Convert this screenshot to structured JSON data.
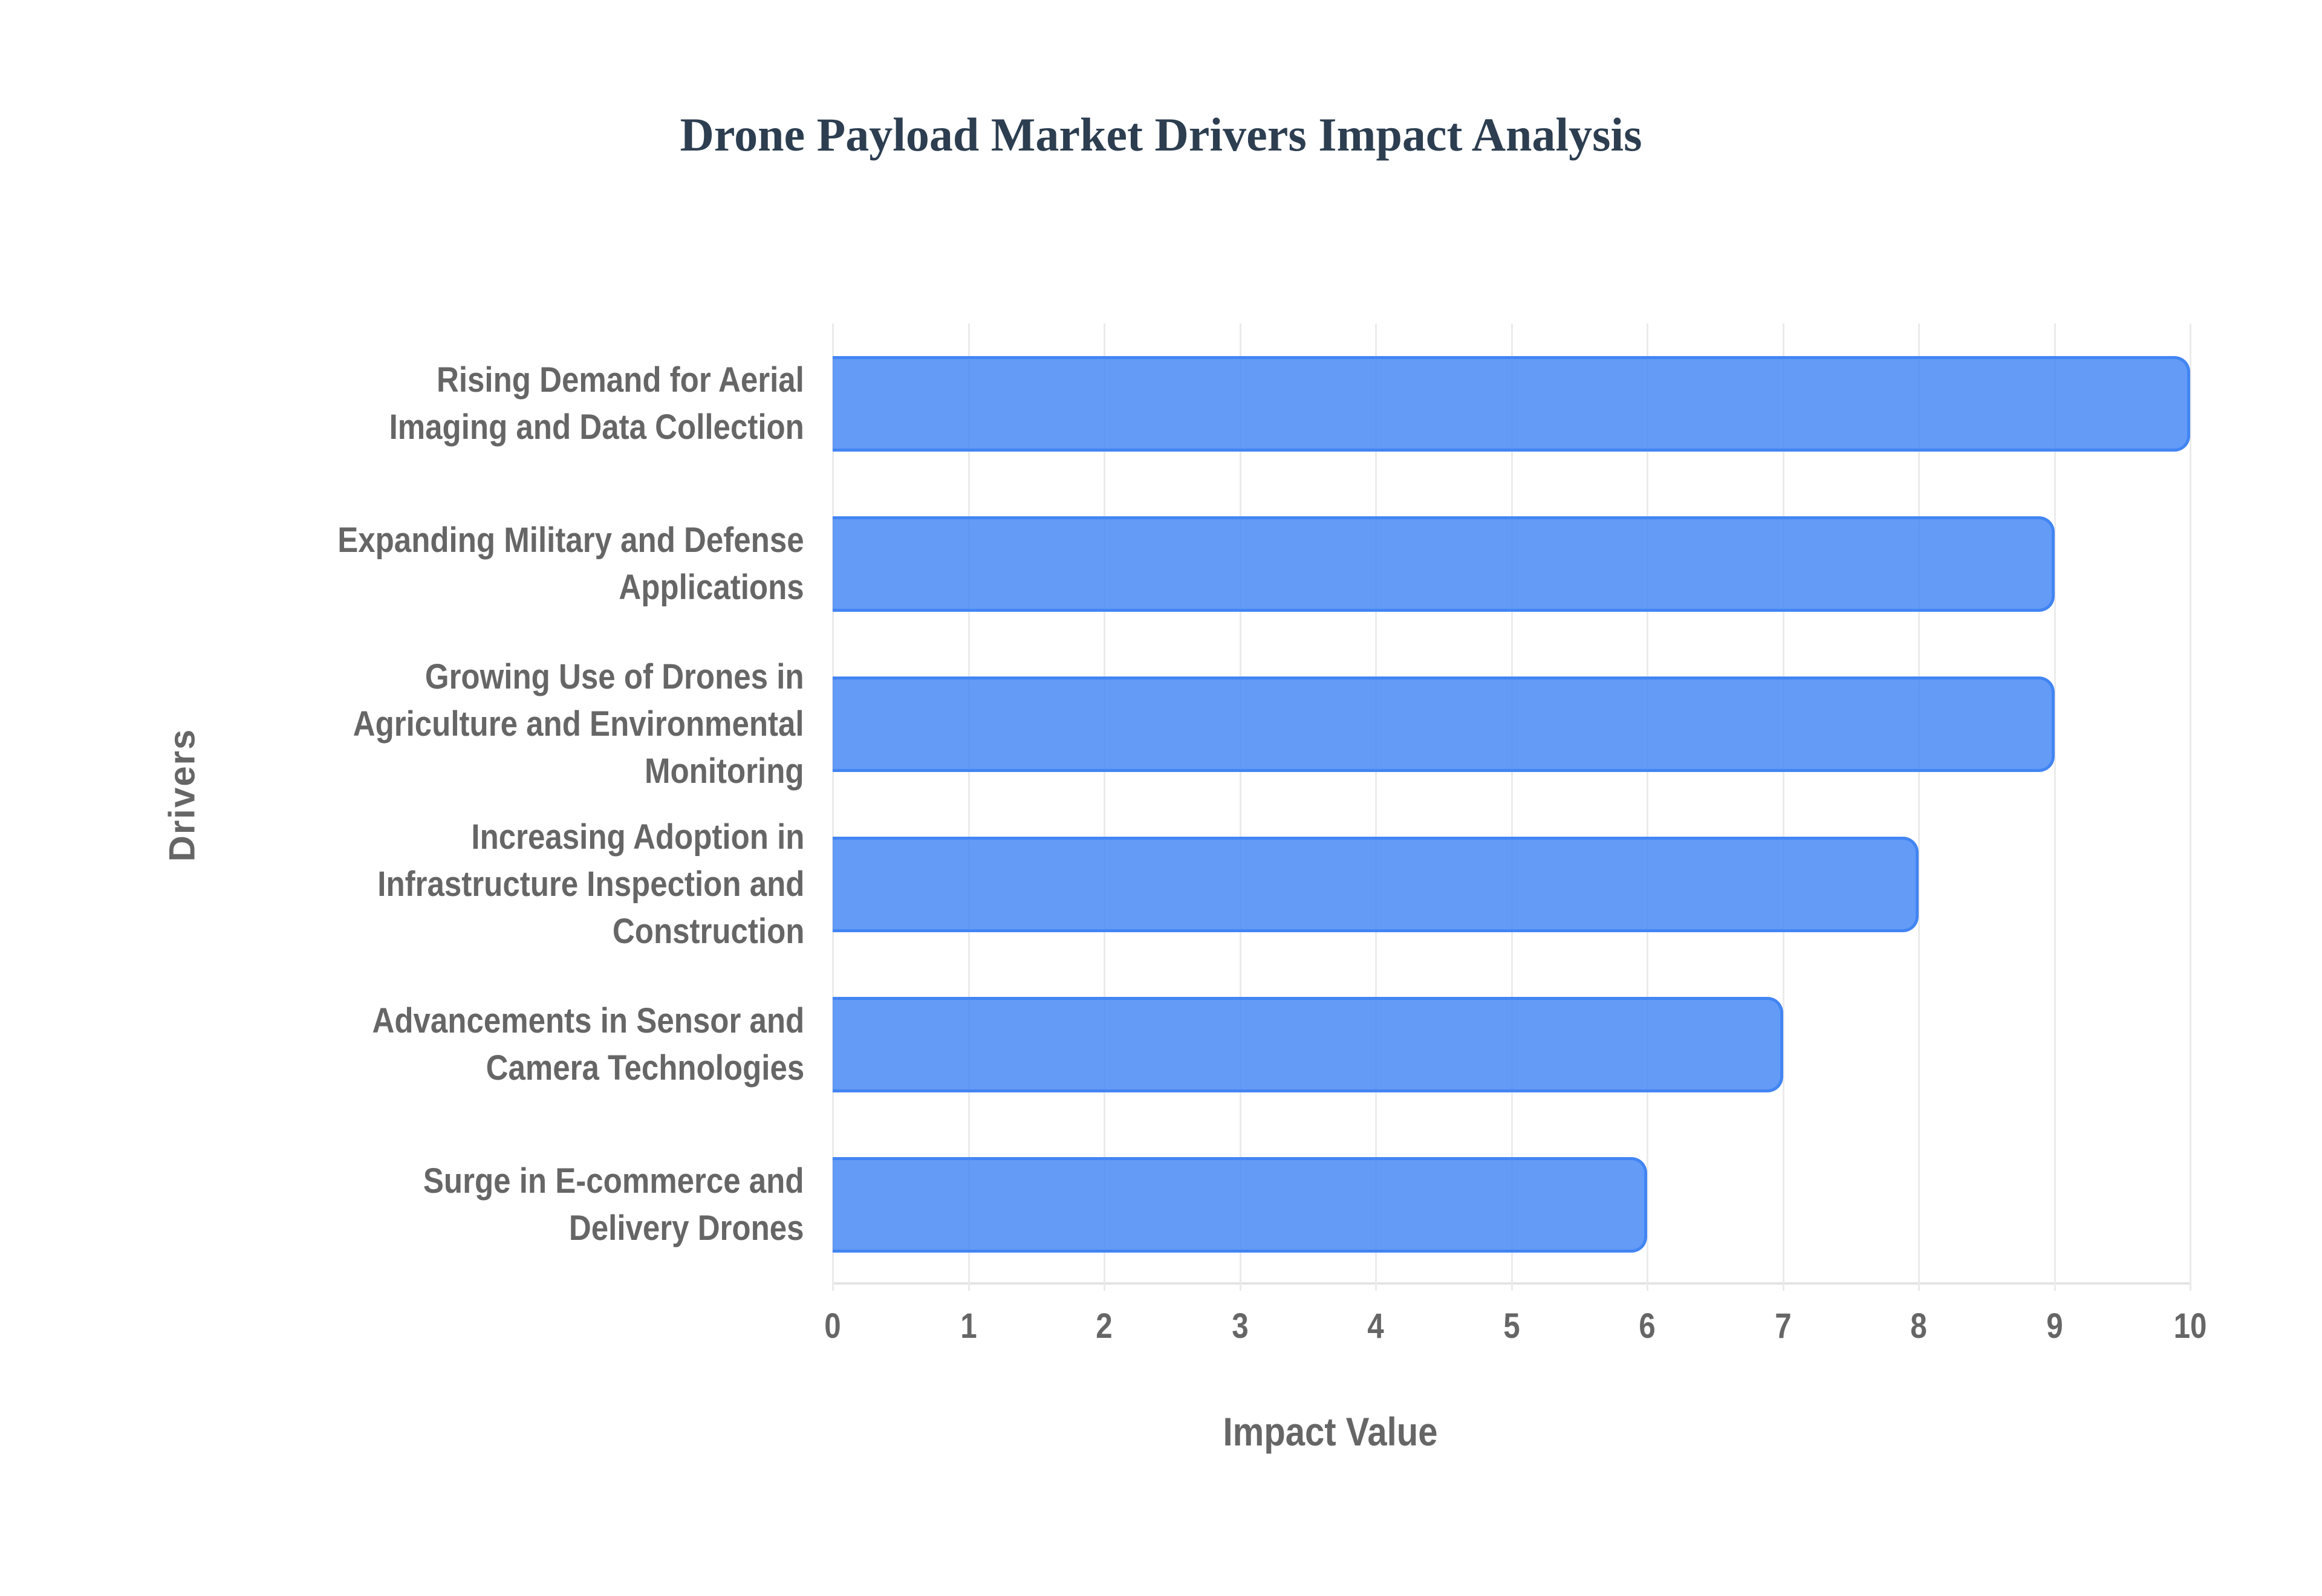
{
  "chart_data": {
    "type": "bar",
    "orientation": "horizontal",
    "title": "Drone Payload Market Drivers Impact Analysis",
    "xlabel": "Impact Value",
    "ylabel": "Drivers",
    "xlim": [
      0,
      10
    ],
    "xticks": [
      "0",
      "1",
      "2",
      "3",
      "4",
      "5",
      "6",
      "7",
      "8",
      "9",
      "10"
    ],
    "grid": true,
    "legend": null,
    "categories": [
      "Rising Demand for Aerial Imaging and Data Collection",
      "Expanding Military and Defense Applications",
      "Growing Use of Drones in Agriculture and Environmental Monitoring",
      "Increasing Adoption in Infrastructure Inspection and Construction",
      "Advancements in Sensor and Camera Technologies",
      "Surge in E-commerce and Delivery Drones"
    ],
    "values": [
      10,
      9,
      9,
      8,
      7,
      6
    ],
    "colors": {
      "bar_fill": "#6299f5",
      "bar_border": "#4285f4",
      "title": "#2c3e50",
      "text": "#666666",
      "grid": "#ebebeb"
    }
  },
  "labels": {
    "rows": [
      [
        "Rising Demand for Aerial",
        "Imaging and Data Collection"
      ],
      [
        "Expanding Military and Defense",
        "Applications"
      ],
      [
        "Growing Use of Drones in",
        "Agriculture and Environmental",
        "Monitoring"
      ],
      [
        "Increasing Adoption in",
        "Infrastructure Inspection and",
        "Construction"
      ],
      [
        "Advancements in Sensor and",
        "Camera Technologies"
      ],
      [
        "Surge in E-commerce and",
        "Delivery Drones"
      ]
    ]
  }
}
